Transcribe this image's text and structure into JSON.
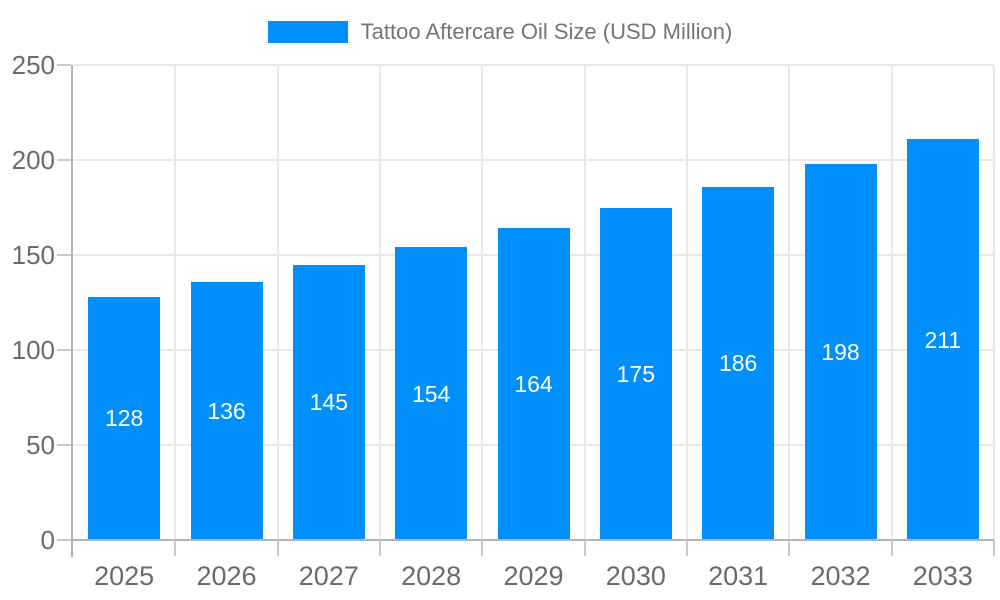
{
  "chart_data": {
    "type": "bar",
    "title": "Tattoo Aftercare Oil Size (USD Million)",
    "categories": [
      "2025",
      "2026",
      "2027",
      "2028",
      "2029",
      "2030",
      "2031",
      "2032",
      "2033"
    ],
    "values": [
      128,
      136,
      145,
      154,
      164,
      175,
      186,
      198,
      211
    ],
    "series_name": "Tattoo Aftercare Oil Size (USD Million)",
    "xlabel": "",
    "ylabel": "",
    "ylim": [
      0,
      250
    ],
    "ytick_step": 50,
    "ytick_labels": [
      "0",
      "50",
      "100",
      "150",
      "200",
      "250"
    ],
    "grid": true,
    "legend_position": "top",
    "data_labels": "inside-middle"
  },
  "colors": {
    "bar": "#008FFB",
    "bar_label": "#ffffff",
    "grid": "#e8e8e8",
    "axis": "#b3b3b3",
    "tick": "#c9c9c9",
    "axis_label": "#6b6b6b",
    "legend_text": "#757575",
    "background": "#ffffff"
  }
}
